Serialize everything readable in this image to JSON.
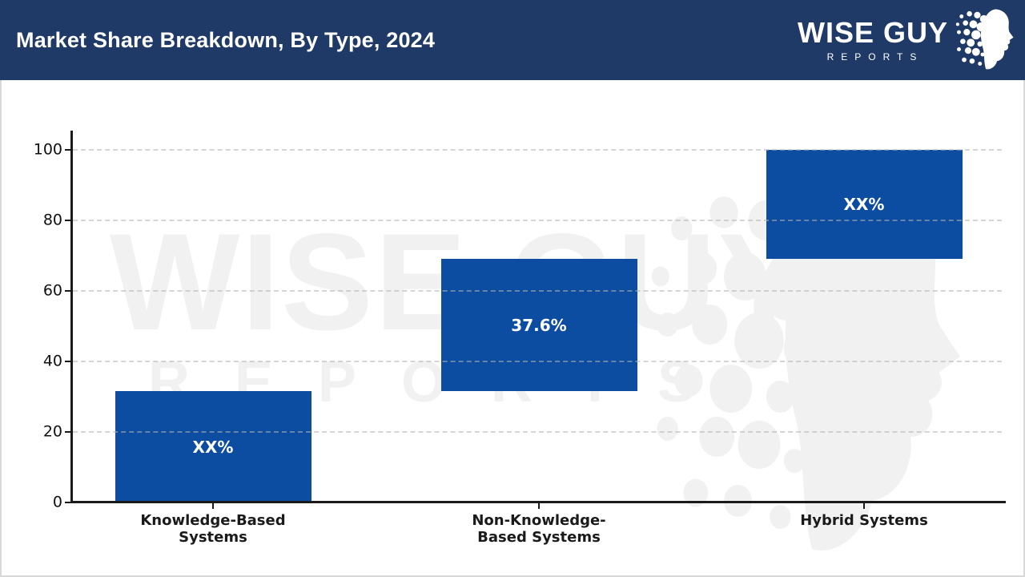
{
  "header": {
    "title": "Market Share Breakdown, By Type, 2024",
    "logo": {
      "line1": "WISE GUY",
      "line2": "REPORTS"
    }
  },
  "watermark": {
    "line1": "WISE GUY",
    "line2": "REPORTS"
  },
  "colors": {
    "header_bg": "#203a68",
    "bar_blue": "#0c4da2",
    "grid_gray": "#d8d8d8",
    "axis_black": "#1a1a1a",
    "watermark_gray": "#f1f1f1"
  },
  "chart_data": {
    "type": "bar",
    "subtype": "floating-stacked-segments",
    "title": "Market Share Breakdown, By Type, 2024",
    "categories": [
      "Knowledge-Based Systems",
      "Non-Knowledge-Based Systems",
      "Hybrid Systems"
    ],
    "categories_display": [
      {
        "line1": "Knowledge-Based",
        "line2": "Systems"
      },
      {
        "line1": "Non-Knowledge-",
        "line2": "Based Systems"
      },
      {
        "line1": "Hybrid Systems",
        "line2": ""
      }
    ],
    "segments": [
      {
        "name": "Knowledge-Based Systems",
        "from": 0,
        "to": 31.5,
        "label": "XX%"
      },
      {
        "name": "Non-Knowledge-Based Systems",
        "from": 31.5,
        "to": 69.1,
        "label": "37.6%"
      },
      {
        "name": "Hybrid Systems",
        "from": 69.1,
        "to": 100,
        "label": "XX%"
      }
    ],
    "bar_labels": [
      "XX%",
      "37.6%",
      "XX%"
    ],
    "ylim": [
      0,
      100
    ],
    "yticks": [
      0,
      20,
      40,
      60,
      80,
      100
    ],
    "xlabel": "",
    "ylabel": "",
    "grid": "horizontal-dashed",
    "legend": "none"
  }
}
